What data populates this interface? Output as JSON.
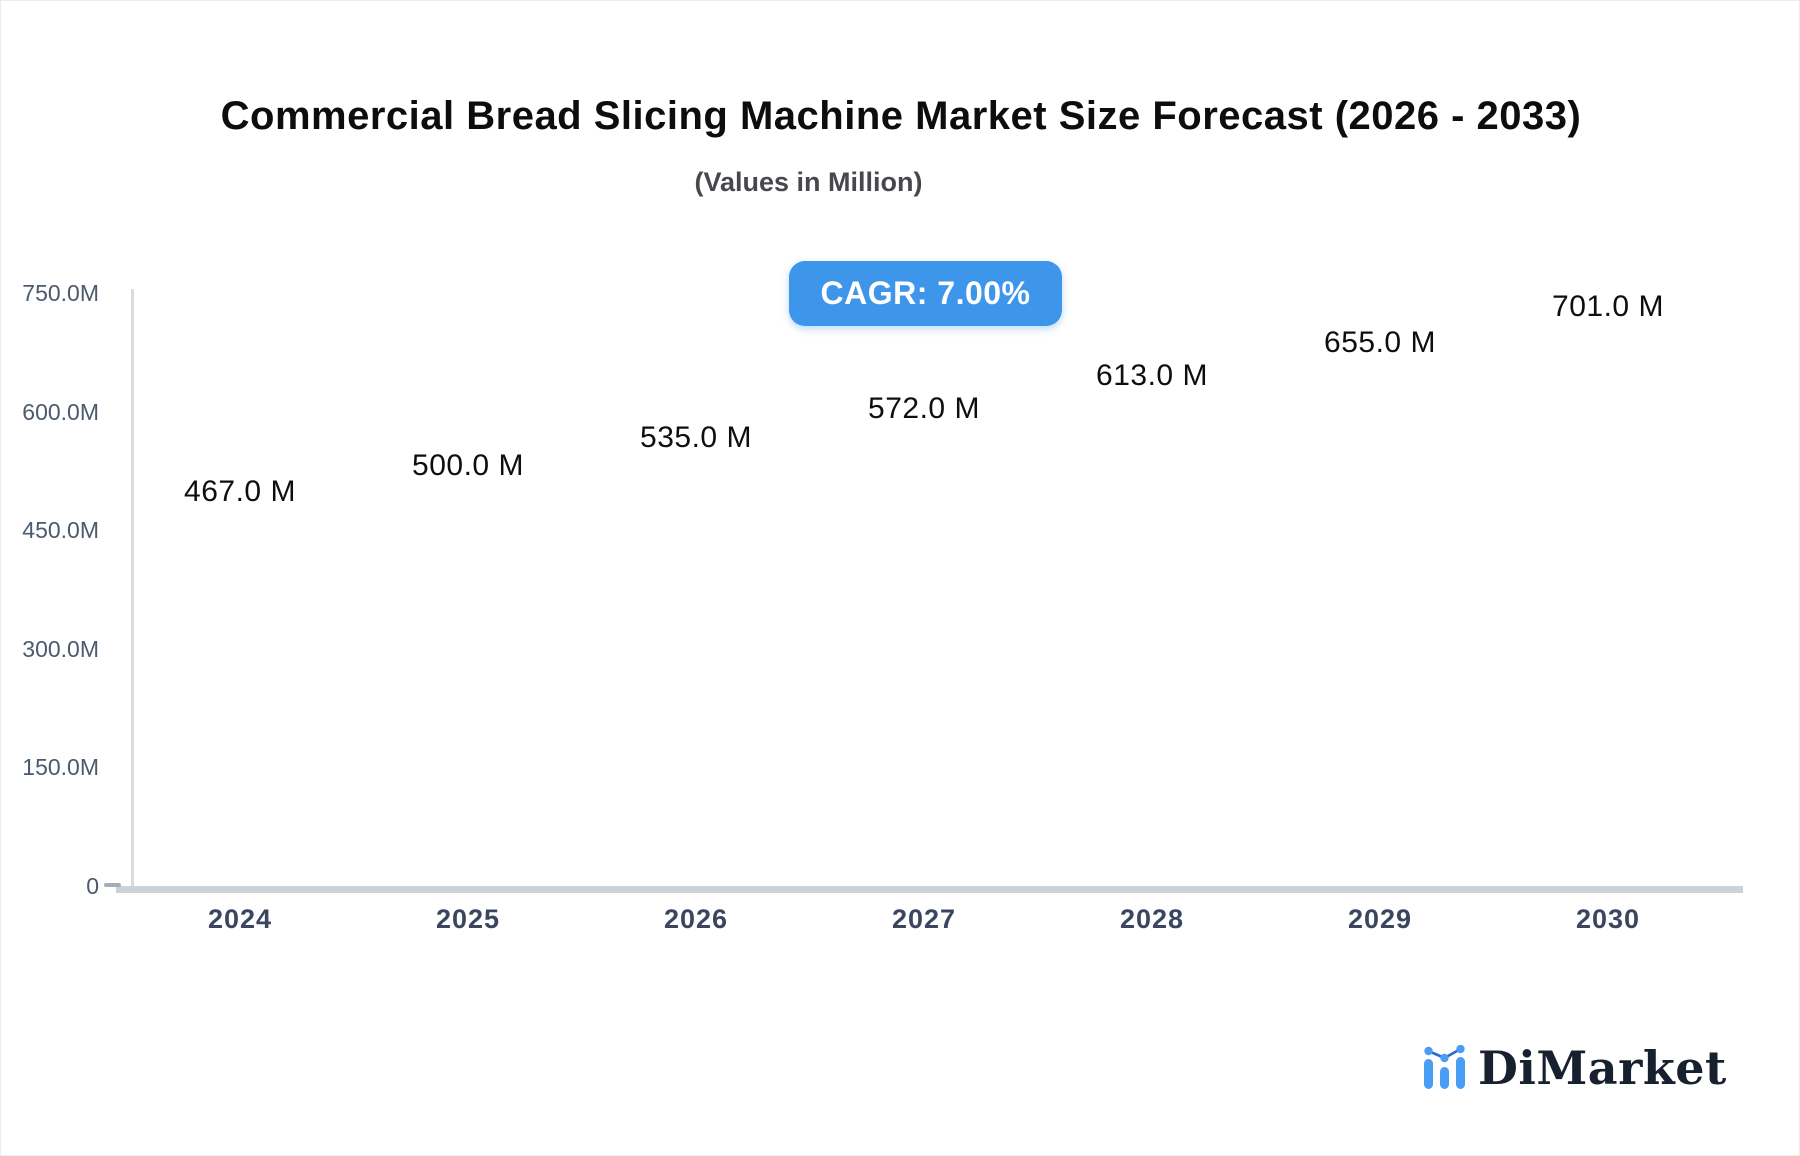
{
  "header": {
    "title": "Commercial Bread Slicing Machine Market Size Forecast (2026 - 2033)",
    "subtitle": "(Values in Million)"
  },
  "badge": {
    "label": "CAGR: 7.00%",
    "color": "#3e96ea"
  },
  "chart_data": {
    "type": "bar",
    "title": "Commercial Bread Slicing Machine Market Size Forecast (2026 - 2033)",
    "subtitle": "(Values in Million)",
    "categories": [
      "2024",
      "2025",
      "2026",
      "2027",
      "2028",
      "2029",
      "2030"
    ],
    "values": [
      467.0,
      500.0,
      535.0,
      572.0,
      613.0,
      655.0,
      701.0
    ],
    "bar_labels": [
      "467.0 M",
      "500.0 M",
      "535.0 M",
      "572.0 M",
      "613.0 M",
      "655.0 M",
      "701.0 M"
    ],
    "unit": "Million",
    "cagr": "CAGR: 7.00%",
    "ylim": [
      0,
      750
    ],
    "y_ticks": [
      {
        "value": 750,
        "label": "750.0M"
      },
      {
        "value": 600,
        "label": "600.0M"
      },
      {
        "value": 450,
        "label": "450.0M"
      },
      {
        "value": 300,
        "label": "300.0M"
      },
      {
        "value": 150,
        "label": "150.0M"
      },
      {
        "value": 0,
        "label": "0"
      }
    ],
    "grid": false,
    "legend": false,
    "bar_color_top": "#61adf1",
    "bar_color_bottom": "#4196ea",
    "bar_side_color": "#2f6fab",
    "bevel_sides": [
      "right",
      "right",
      "right",
      "none",
      "left",
      "left",
      "left"
    ]
  },
  "footer": {
    "logo_text": "DiMarket"
  }
}
